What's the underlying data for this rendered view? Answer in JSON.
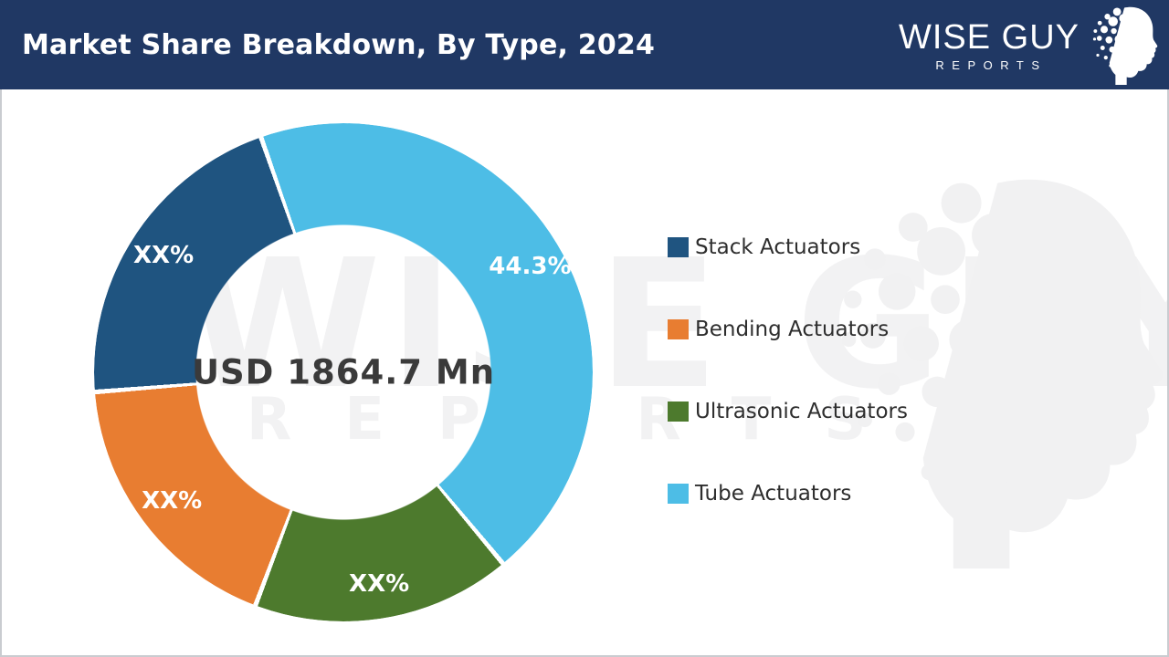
{
  "header": {
    "title": "Market Share Breakdown, By Type, 2024",
    "bg_color": "#203864"
  },
  "logo": {
    "line1": "WISE GUY",
    "line2": "REPORTS"
  },
  "watermark": {
    "line1": "WISE GUY",
    "line2": "REPORTS"
  },
  "chart_data": {
    "type": "pie",
    "donut": true,
    "title": "Market Share Breakdown, By Type, 2024",
    "center_label": "USD 1864.7 Mn",
    "legend_position": "right",
    "start_angle_deg_cw_from_top": -19.3,
    "data_order_direction": "counterclockwise",
    "segments": [
      {
        "name": "Stack Actuators",
        "label": "XX%",
        "value_pct": 20.9,
        "estimated": true,
        "color": "#1f5480"
      },
      {
        "name": "Bending Actuators",
        "label": "XX%",
        "value_pct": 18.0,
        "estimated": true,
        "color": "#e87d31"
      },
      {
        "name": "Ultrasonic Actuators",
        "label": "XX%",
        "value_pct": 16.8,
        "estimated": true,
        "color": "#4d7a2d"
      },
      {
        "name": "Tube Actuators",
        "label": "44.3%",
        "value_pct": 44.3,
        "estimated": false,
        "color": "#4dbde6"
      }
    ]
  }
}
